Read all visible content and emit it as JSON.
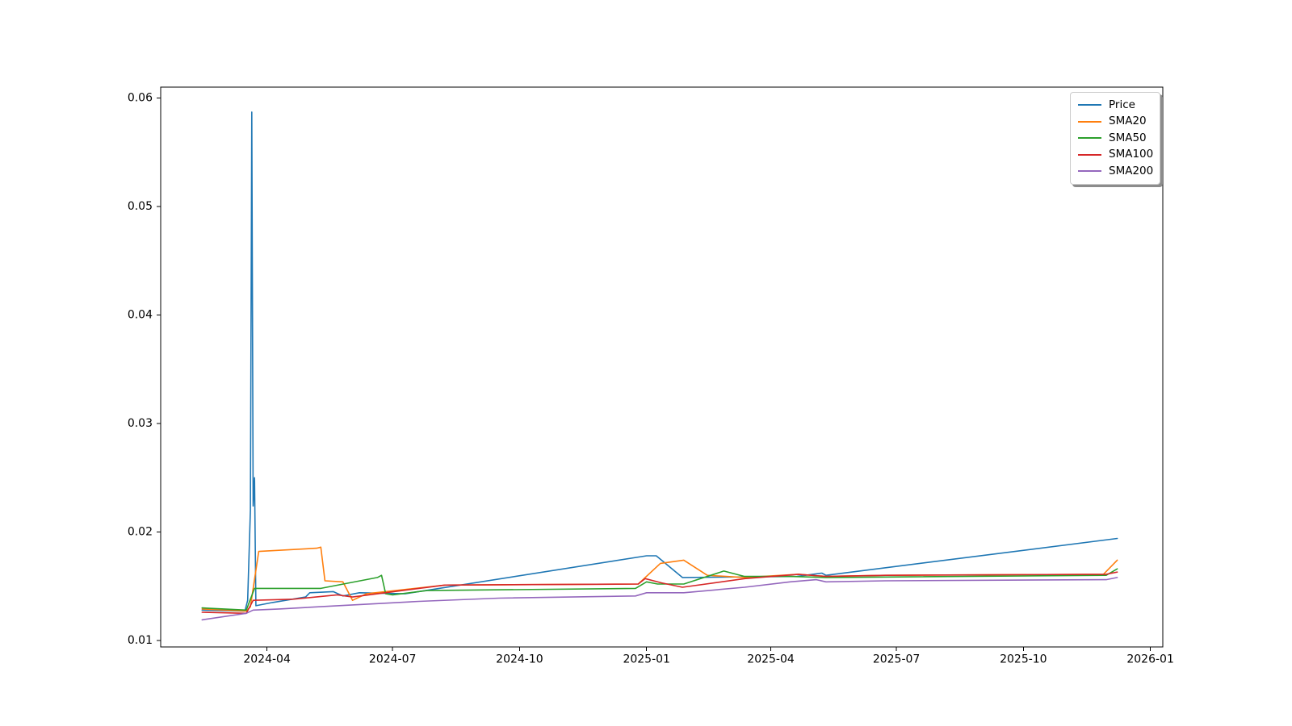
{
  "figure": {
    "background": "#ffffff",
    "plot_background": "#ffffff",
    "spine_color": "#000000"
  },
  "chart_data": {
    "type": "line",
    "title": "",
    "xlabel": "",
    "ylabel": "",
    "grid": false,
    "x_axis": {
      "type": "date",
      "range": [
        "2024-01-15",
        "2026-01-10"
      ],
      "ticks": [
        {
          "value": "2024-04-01",
          "label": "2024-04"
        },
        {
          "value": "2024-07-01",
          "label": "2024-07"
        },
        {
          "value": "2024-10-01",
          "label": "2024-10"
        },
        {
          "value": "2025-01-01",
          "label": "2025-01"
        },
        {
          "value": "2025-04-01",
          "label": "2025-04"
        },
        {
          "value": "2025-07-01",
          "label": "2025-07"
        },
        {
          "value": "2025-10-01",
          "label": "2025-10"
        },
        {
          "value": "2026-01-01",
          "label": "2026-01"
        }
      ]
    },
    "y_axis": {
      "range": [
        0.0094,
        0.061
      ],
      "ticks": [
        {
          "value": 0.01,
          "label": "0.01"
        },
        {
          "value": 0.02,
          "label": "0.02"
        },
        {
          "value": 0.03,
          "label": "0.03"
        },
        {
          "value": 0.04,
          "label": "0.04"
        },
        {
          "value": 0.05,
          "label": "0.05"
        },
        {
          "value": 0.06,
          "label": "0.06"
        }
      ]
    },
    "legend": {
      "position": "upper right",
      "entries": [
        "Price",
        "SMA20",
        "SMA50",
        "SMA100",
        "SMA200"
      ]
    },
    "series": [
      {
        "name": "Price",
        "color": "#1f77b4",
        "points": [
          [
            "2024-02-14",
            0.0128
          ],
          [
            "2024-03-16",
            0.0127
          ],
          [
            "2024-03-18",
            0.0137
          ],
          [
            "2024-03-20",
            0.022
          ],
          [
            "2024-03-21",
            0.0587
          ],
          [
            "2024-03-22",
            0.0224
          ],
          [
            "2024-03-23",
            0.025
          ],
          [
            "2024-03-24",
            0.0132
          ],
          [
            "2024-04-05",
            0.0135
          ],
          [
            "2024-04-29",
            0.014
          ],
          [
            "2024-05-02",
            0.0144
          ],
          [
            "2024-05-19",
            0.0145
          ],
          [
            "2024-05-26",
            0.0141
          ],
          [
            "2024-06-07",
            0.0144
          ],
          [
            "2024-07-10",
            0.0143
          ],
          [
            "2025-01-01",
            0.0178
          ],
          [
            "2025-01-08",
            0.0178
          ],
          [
            "2025-01-27",
            0.0158
          ],
          [
            "2025-04-20",
            0.0159
          ],
          [
            "2025-05-08",
            0.0162
          ],
          [
            "2025-05-11",
            0.016
          ],
          [
            "2025-12-08",
            0.0194
          ]
        ]
      },
      {
        "name": "SMA20",
        "color": "#ff7f0e",
        "points": [
          [
            "2024-02-14",
            0.0129
          ],
          [
            "2024-03-17",
            0.0127
          ],
          [
            "2024-03-20",
            0.0131
          ],
          [
            "2024-03-26",
            0.0182
          ],
          [
            "2024-05-07",
            0.0185
          ],
          [
            "2024-05-10",
            0.0186
          ],
          [
            "2024-05-13",
            0.0155
          ],
          [
            "2024-05-26",
            0.0154
          ],
          [
            "2024-06-02",
            0.0137
          ],
          [
            "2024-06-12",
            0.0143
          ],
          [
            "2024-08-08",
            0.0151
          ],
          [
            "2024-12-26",
            0.0152
          ],
          [
            "2025-01-11",
            0.0171
          ],
          [
            "2025-01-28",
            0.0174
          ],
          [
            "2025-02-14",
            0.016
          ],
          [
            "2025-03-13",
            0.0158
          ],
          [
            "2025-04-21",
            0.0161
          ],
          [
            "2025-05-11",
            0.0159
          ],
          [
            "2025-06-23",
            0.016
          ],
          [
            "2025-11-28",
            0.0161
          ],
          [
            "2025-12-08",
            0.0174
          ]
        ]
      },
      {
        "name": "SMA50",
        "color": "#2ca02c",
        "points": [
          [
            "2024-02-14",
            0.013
          ],
          [
            "2024-03-17",
            0.0128
          ],
          [
            "2024-03-23",
            0.0148
          ],
          [
            "2024-05-10",
            0.0148
          ],
          [
            "2024-06-20",
            0.0158
          ],
          [
            "2024-06-23",
            0.016
          ],
          [
            "2024-06-26",
            0.0143
          ],
          [
            "2024-07-01",
            0.0142
          ],
          [
            "2024-07-26",
            0.0146
          ],
          [
            "2024-12-24",
            0.0148
          ],
          [
            "2025-01-01",
            0.0154
          ],
          [
            "2025-01-09",
            0.0152
          ],
          [
            "2025-01-28",
            0.0152
          ],
          [
            "2025-02-26",
            0.0164
          ],
          [
            "2025-03-13",
            0.0159
          ],
          [
            "2025-04-15",
            0.0159
          ],
          [
            "2025-05-11",
            0.0158
          ],
          [
            "2025-11-30",
            0.016
          ],
          [
            "2025-12-08",
            0.0166
          ]
        ]
      },
      {
        "name": "SMA100",
        "color": "#d62728",
        "points": [
          [
            "2024-02-14",
            0.0126
          ],
          [
            "2024-03-17",
            0.0125
          ],
          [
            "2024-03-22",
            0.0137
          ],
          [
            "2024-04-20",
            0.0138
          ],
          [
            "2024-05-22",
            0.0142
          ],
          [
            "2024-06-02",
            0.014
          ],
          [
            "2024-06-20",
            0.0143
          ],
          [
            "2024-08-08",
            0.0151
          ],
          [
            "2024-12-26",
            0.0152
          ],
          [
            "2024-12-31",
            0.0157
          ],
          [
            "2025-01-12",
            0.0153
          ],
          [
            "2025-01-27",
            0.0149
          ],
          [
            "2025-03-13",
            0.0157
          ],
          [
            "2025-04-21",
            0.0161
          ],
          [
            "2025-05-11",
            0.0159
          ],
          [
            "2025-06-23",
            0.016
          ],
          [
            "2025-11-30",
            0.0161
          ],
          [
            "2025-12-08",
            0.0163
          ]
        ]
      },
      {
        "name": "SMA200",
        "color": "#9467bd",
        "points": [
          [
            "2024-02-14",
            0.0119
          ],
          [
            "2024-03-17",
            0.0125
          ],
          [
            "2024-03-22",
            0.0128
          ],
          [
            "2024-04-10",
            0.0129
          ],
          [
            "2024-05-22",
            0.0132
          ],
          [
            "2024-07-20",
            0.0136
          ],
          [
            "2024-09-16",
            0.0139
          ],
          [
            "2024-12-24",
            0.0141
          ],
          [
            "2025-01-01",
            0.0144
          ],
          [
            "2025-01-28",
            0.0144
          ],
          [
            "2025-03-13",
            0.0149
          ],
          [
            "2025-04-15",
            0.0154
          ],
          [
            "2025-05-04",
            0.0156
          ],
          [
            "2025-05-11",
            0.0154
          ],
          [
            "2025-06-23",
            0.0155
          ],
          [
            "2025-11-30",
            0.0156
          ],
          [
            "2025-12-08",
            0.0158
          ]
        ]
      }
    ]
  }
}
